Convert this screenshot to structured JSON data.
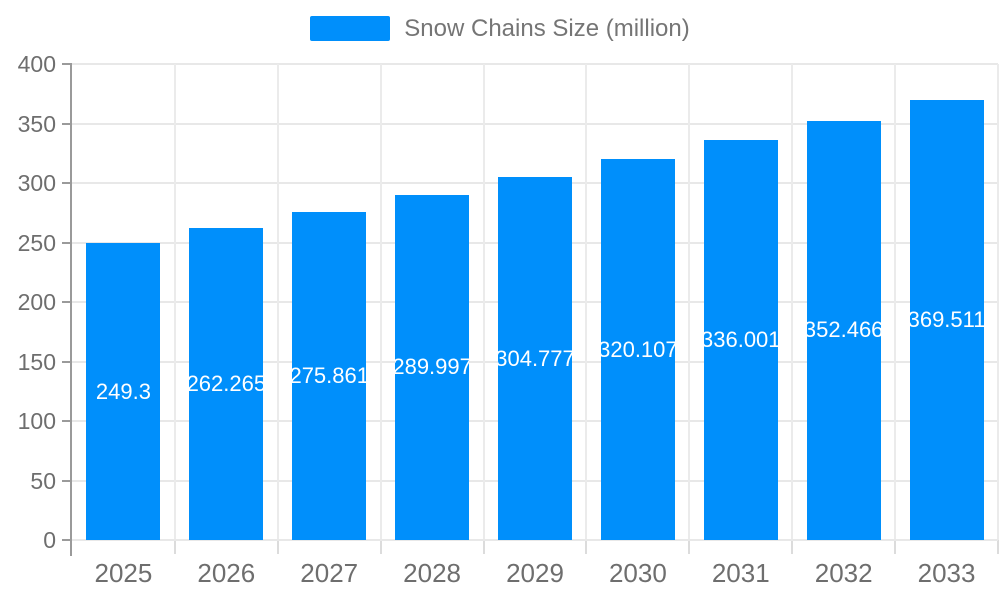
{
  "legend": {
    "series_label": "Snow Chains Size (million)",
    "swatch_color": "#008FFB"
  },
  "chart_data": {
    "type": "bar",
    "title": "Snow Chains Size (million)",
    "categories": [
      "2025",
      "2026",
      "2027",
      "2028",
      "2029",
      "2030",
      "2031",
      "2032",
      "2033"
    ],
    "series": [
      {
        "name": "Snow Chains Size (million)",
        "values": [
          249.3,
          262.265,
          275.861,
          289.997,
          304.777,
          320.107,
          336.001,
          352.466,
          369.511
        ]
      }
    ],
    "value_labels": [
      "249.3",
      "262.265",
      "275.861",
      "289.997",
      "304.777",
      "320.107",
      "336.001",
      "352.466",
      "369.511"
    ],
    "xlabel": "",
    "ylabel": "",
    "ylim": [
      0,
      400
    ],
    "yticks": [
      0,
      50,
      100,
      150,
      200,
      250,
      300,
      350,
      400
    ],
    "grid": true,
    "legend_position": "top",
    "bar_color": "#008FFB",
    "value_label_color": "#ffffff",
    "axis_label_color": "#6e6e6e",
    "gridline_color": "#e8e8e8",
    "axis_line_color": "#9a9a9a",
    "background_color": "#ffffff"
  }
}
